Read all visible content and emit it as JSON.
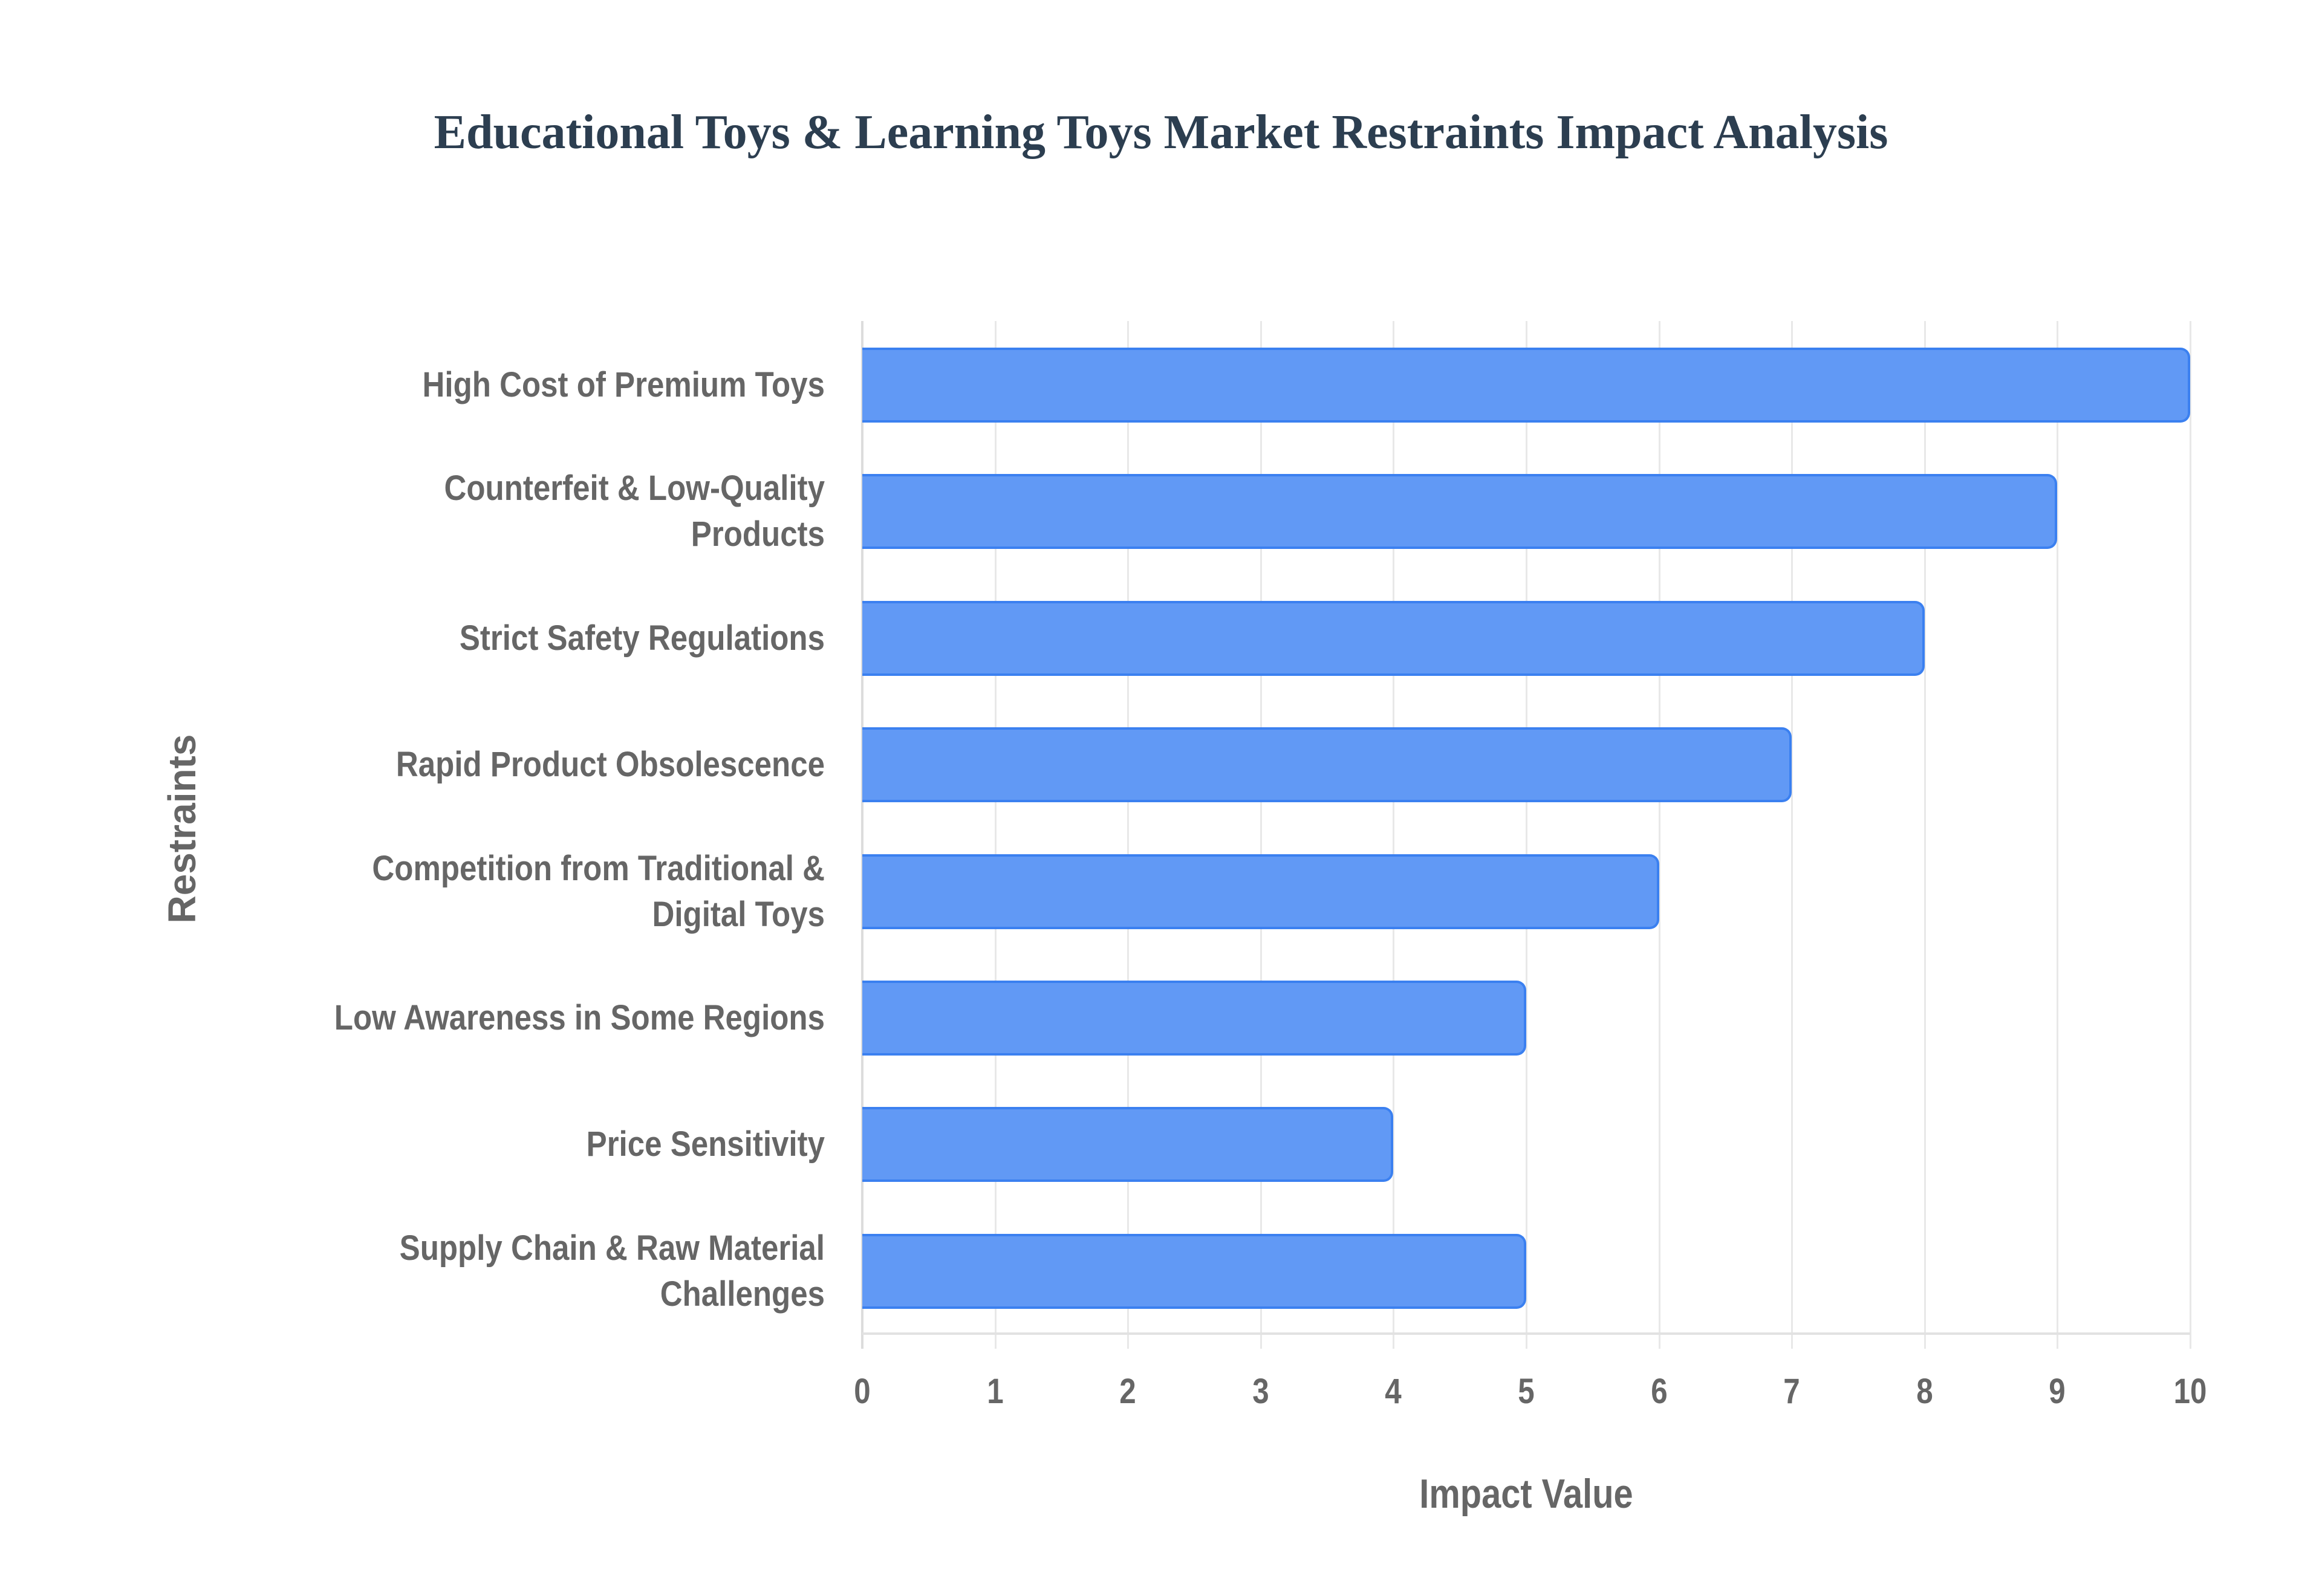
{
  "chart_data": {
    "type": "bar",
    "orientation": "horizontal",
    "title": "Educational Toys & Learning Toys Market Restraints Impact Analysis",
    "xlabel": "Impact Value",
    "ylabel": "Restraints",
    "xlim": [
      0,
      10
    ],
    "xticks": [
      "0",
      "1",
      "2",
      "3",
      "4",
      "5",
      "6",
      "7",
      "8",
      "9",
      "10"
    ],
    "grid": true,
    "legend": null,
    "categories": [
      "High Cost of Premium Toys",
      "Counterfeit & Low-Quality Products",
      "Strict Safety Regulations",
      "Rapid Product Obsolescence",
      "Competition from Traditional & Digital Toys",
      "Low Awareness in Some Regions",
      "Price Sensitivity",
      "Supply Chain & Raw Material Challenges"
    ],
    "values": [
      10,
      9,
      8,
      7,
      6,
      5,
      4,
      5
    ],
    "bar_color": "#6199f5",
    "bar_border_color": "#3b80f0"
  },
  "labels": {
    "l0": [
      "High Cost of Premium Toys"
    ],
    "l1": [
      "Counterfeit & Low-Quality",
      "Products"
    ],
    "l2": [
      "Strict Safety Regulations"
    ],
    "l3": [
      "Rapid Product Obsolescence"
    ],
    "l4": [
      "Competition from Traditional &",
      "Digital Toys"
    ],
    "l5": [
      "Low Awareness in Some Regions"
    ],
    "l6": [
      "Price Sensitivity"
    ],
    "l7": [
      "Supply Chain & Raw Material",
      "Challenges"
    ]
  }
}
